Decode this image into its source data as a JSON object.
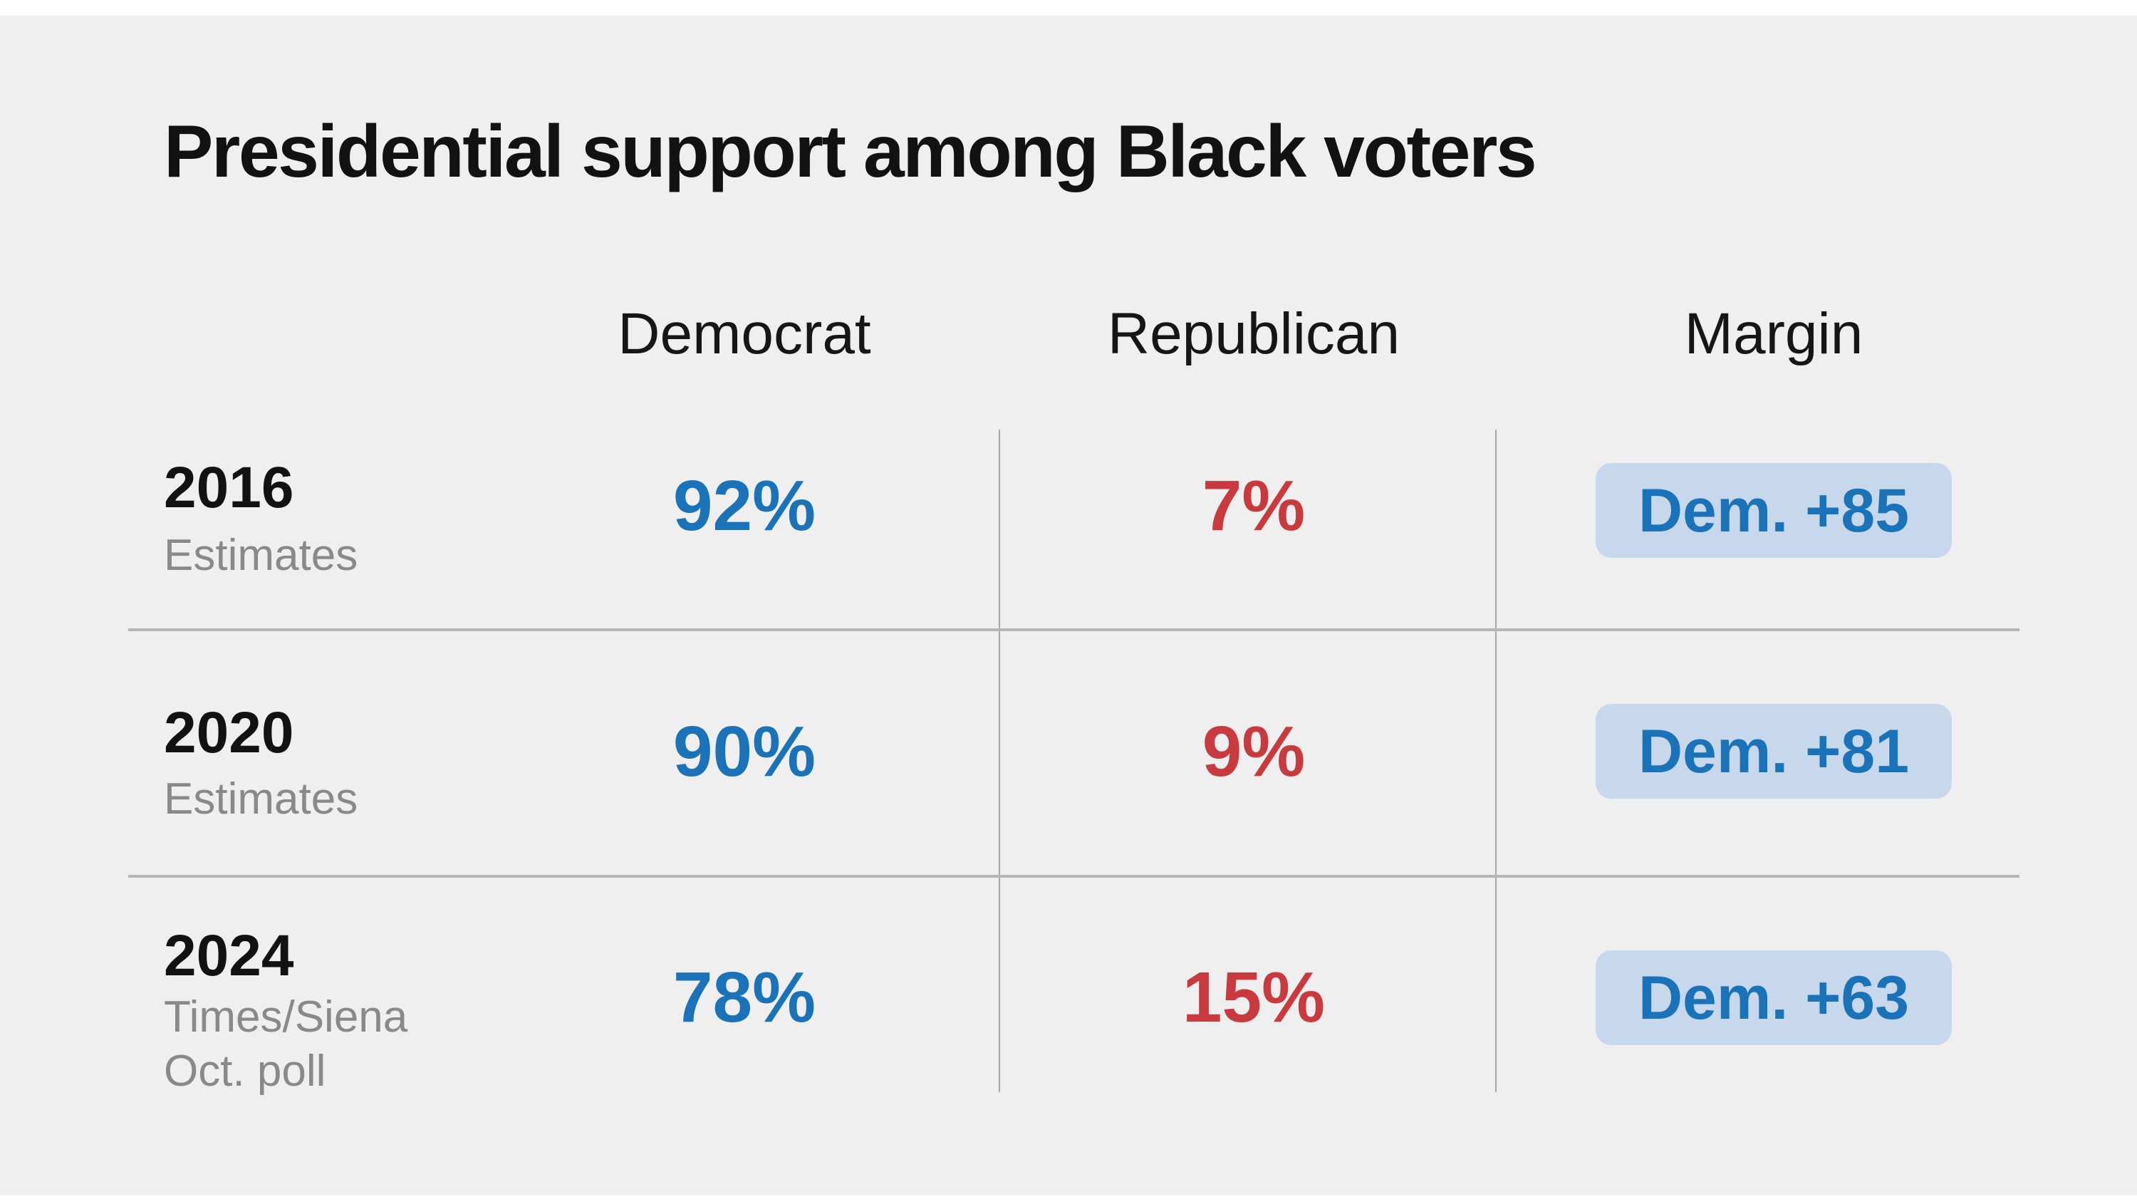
{
  "title": "Presidential support among Black voters",
  "columns": {
    "democrat": "Democrat",
    "republican": "Republican",
    "margin": "Margin"
  },
  "table": {
    "rows": [
      {
        "year": "2016",
        "source": "Estimates",
        "democrat": "92%",
        "republican": "7%",
        "margin": "Dem. +85"
      },
      {
        "year": "2020",
        "source": "Estimates",
        "democrat": "90%",
        "republican": "9%",
        "margin": "Dem. +81"
      },
      {
        "year": "2024",
        "source": "Times/Siena Oct. poll",
        "democrat": "78%",
        "republican": "15%",
        "margin": "Dem. +63"
      }
    ]
  },
  "colors": {
    "canvas_background": "#efefef",
    "democrat_blue": "#1a73b8",
    "republican_red": "#c93a3f",
    "badge_background": "#c8d8ec",
    "text_dark": "#121212",
    "text_gray": "#898989",
    "divider_gray": "#b5b5b5"
  },
  "chart_data": {
    "type": "table",
    "title": "Presidential support among Black voters",
    "columns": [
      "Democrat",
      "Republican",
      "Margin"
    ],
    "categories": [
      "2016",
      "2020",
      "2024"
    ],
    "row_sources": [
      "Estimates",
      "Estimates",
      "Times/Siena Oct. poll"
    ],
    "series": [
      {
        "name": "Democrat",
        "values": [
          92,
          90,
          78
        ]
      },
      {
        "name": "Republican",
        "values": [
          7,
          9,
          15
        ]
      },
      {
        "name": "Margin (Dem. advantage)",
        "values": [
          85,
          81,
          63
        ]
      }
    ],
    "margin_labels": [
      "Dem. +85",
      "Dem. +81",
      "Dem. +63"
    ],
    "layout": {
      "grid": "row and column divider lines",
      "legend": "none"
    }
  }
}
